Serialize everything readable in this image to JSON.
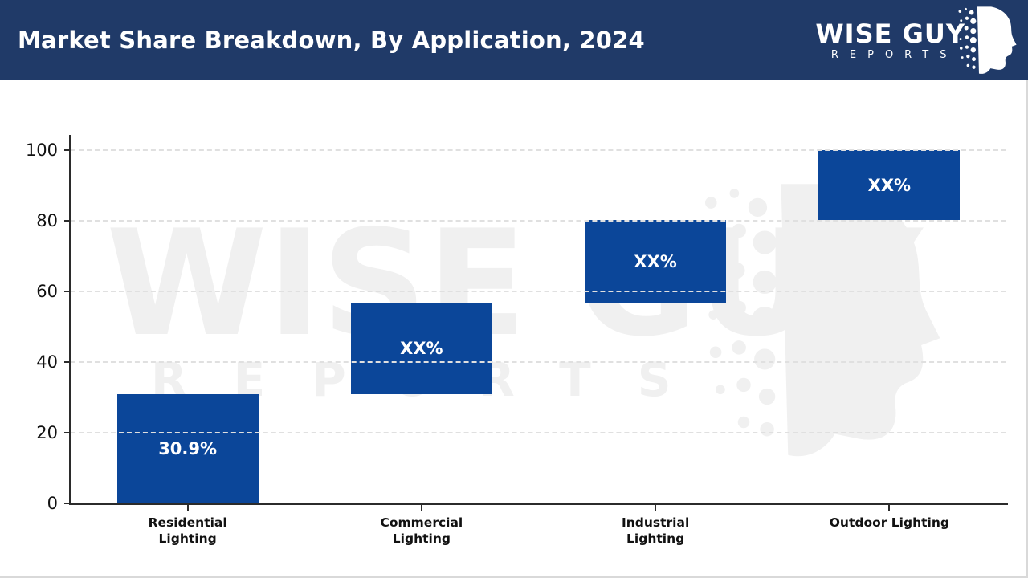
{
  "header": {
    "title": "Market Share Breakdown, By Application, 2024",
    "logo": {
      "line1": "WISE GUY",
      "line2": "REPORTS"
    }
  },
  "watermark": {
    "line1": "WISE GUY",
    "line2": "REPORTS"
  },
  "colors": {
    "header_bg": "#203a68",
    "bar": "#0b4699",
    "grid": "#e0e0e0",
    "axis": "#2b2b2b",
    "value_label": "#ffffff",
    "watermark": "#f0f0f0",
    "edge_line": "#d9d9d9"
  },
  "chart_data": {
    "type": "bar",
    "subtype": "waterfall",
    "title": "Market Share Breakdown, By Application, 2024",
    "xlabel": "",
    "ylabel": "",
    "ylim": [
      0,
      100
    ],
    "y_ticks": [
      0,
      20,
      40,
      60,
      80,
      100
    ],
    "grid": "horizontal-dashed",
    "legend": null,
    "categories": [
      "Residential\nLighting",
      "Commercial\nLighting",
      "Industrial\nLighting",
      "Outdoor Lighting"
    ],
    "steps": [
      {
        "category": "Residential Lighting",
        "start": 0,
        "end": 30.9,
        "label": "30.9%"
      },
      {
        "category": "Commercial Lighting",
        "start": 30.9,
        "end": 56.6,
        "label": "XX%"
      },
      {
        "category": "Industrial Lighting",
        "start": 56.6,
        "end": 80.2,
        "label": "XX%"
      },
      {
        "category": "Outdoor Lighting",
        "start": 80.2,
        "end": 100,
        "label": "XX%"
      }
    ]
  }
}
